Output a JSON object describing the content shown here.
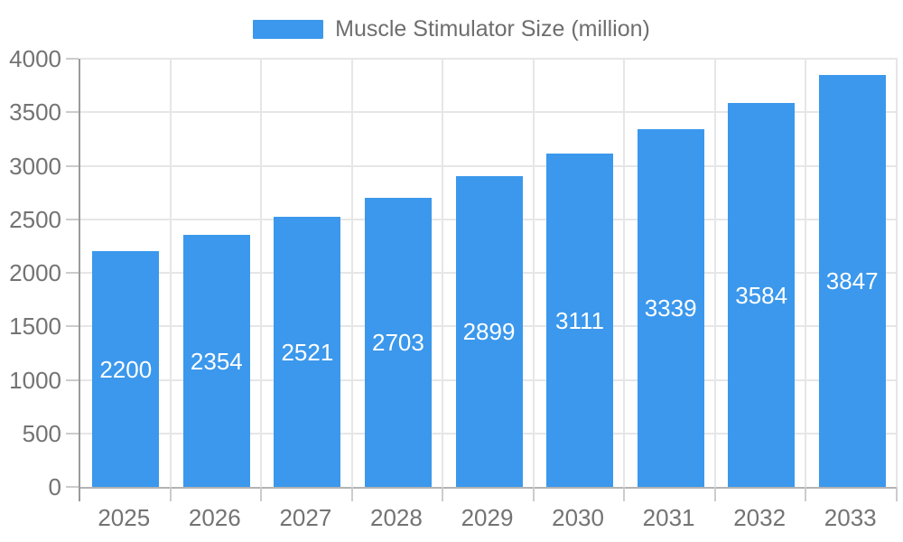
{
  "chart_data": {
    "type": "bar",
    "title": "Muscle Stimulator Size (million)",
    "series_name": "Muscle Stimulator Size (million)",
    "categories": [
      "2025",
      "2026",
      "2027",
      "2028",
      "2029",
      "2030",
      "2031",
      "2032",
      "2033"
    ],
    "values": [
      2200,
      2354,
      2521,
      2703,
      2899,
      3111,
      3339,
      3584,
      3847
    ],
    "xlabel": "",
    "ylabel": "",
    "ylim": [
      0,
      4000
    ],
    "yticks": [
      0,
      500,
      1000,
      1500,
      2000,
      2500,
      3000,
      3500,
      4000
    ],
    "grid": true,
    "legend_position": "top-center",
    "value_labels": "inside-center"
  },
  "colors": {
    "bar": "#3B98EC",
    "bar_value_label": "#ffffff",
    "gridline": "#e6e6e6",
    "y_axis_line": "#9a9a9a",
    "x_axis_line": "#b3b3b3",
    "tick": "#cccccc",
    "axis_text": "#737373",
    "legend_text": "#6e6e6e",
    "background": "#ffffff"
  }
}
